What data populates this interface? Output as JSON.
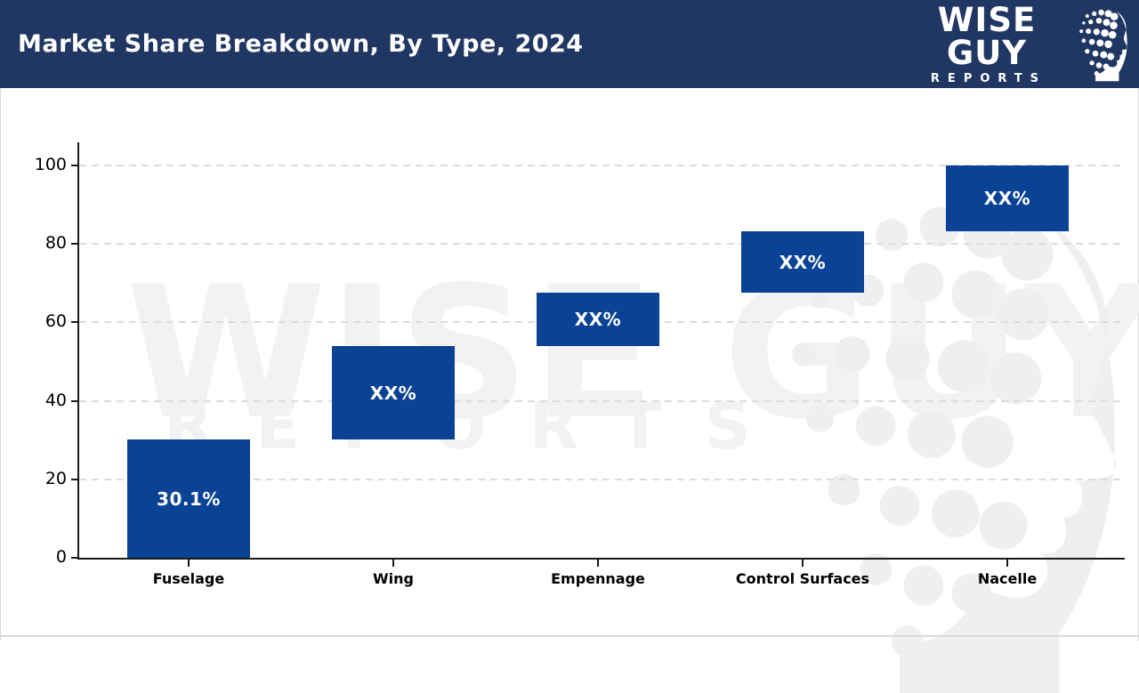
{
  "header": {
    "title": "Market Share Breakdown, By Type, 2024",
    "bg_color": "#213763",
    "logo": {
      "line1": "WISE GUY",
      "line2": "REPORTS"
    }
  },
  "watermark": {
    "line1": "WISE GUY",
    "line2": "REPORTS"
  },
  "chart_data": {
    "type": "bar",
    "subtype": "waterfall",
    "title": "Market Share Breakdown, By Type, 2024",
    "categories": [
      "Fuselage",
      "Wing",
      "Empennage",
      "Control Surfaces",
      "Nacelle"
    ],
    "segments": [
      {
        "category": "Fuselage",
        "start": 0,
        "end": 30.1,
        "label": "30.1%"
      },
      {
        "category": "Wing",
        "start": 30.1,
        "end": 54,
        "label": "XX%"
      },
      {
        "category": "Empennage",
        "start": 54,
        "end": 67.5,
        "label": "XX%"
      },
      {
        "category": "Control Surfaces",
        "start": 67.5,
        "end": 83.2,
        "label": "XX%"
      },
      {
        "category": "Nacelle",
        "start": 83.2,
        "end": 100,
        "label": "XX%"
      }
    ],
    "xlabel": "",
    "ylabel": "",
    "yticks": [
      0,
      20,
      40,
      60,
      80,
      100
    ],
    "ylim": [
      0,
      105
    ],
    "grid": "horizontal-dashed",
    "legend": "none",
    "bar_color": "#0a4296",
    "bar_label_color": "#ffffff"
  }
}
